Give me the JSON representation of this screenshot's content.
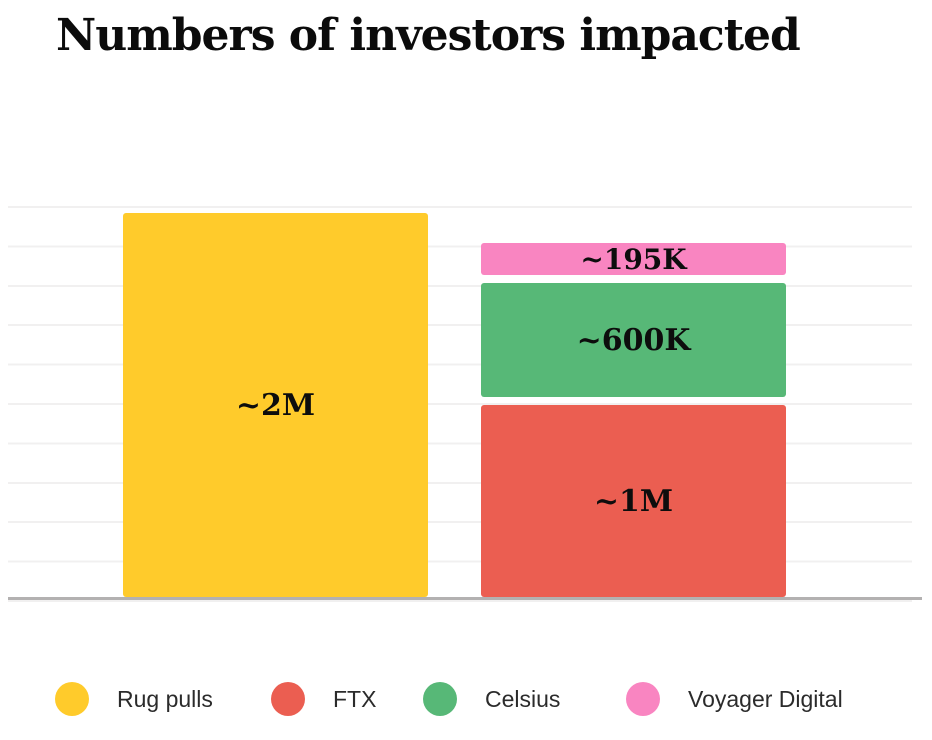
{
  "title": "Numbers of investors impacted",
  "colors": {
    "background": "#FFFFFF",
    "gridline": "#F1F0F0",
    "axis_line": "#B3B1B1",
    "label_text": "#0D0D0D",
    "legend_text": "#2B2B2B"
  },
  "chart_data": {
    "type": "bar",
    "subtype": "stacked",
    "title": "Numbers of investors impacted",
    "grid": true,
    "legend_position": "bottom",
    "value_axis_visible": false,
    "category_axis_visible": false,
    "bars": [
      {
        "segments": [
          {
            "series": "Rug pulls",
            "label": "~2M",
            "value": 2000000,
            "color": "#FFCB2B"
          }
        ]
      },
      {
        "segments": [
          {
            "series": "Voyager Digital",
            "label": "~195K",
            "value": 195000,
            "color": "#F985C1"
          },
          {
            "series": "Celsius",
            "label": "~600K",
            "value": 600000,
            "color": "#57B877"
          },
          {
            "series": "FTX",
            "label": "~1M",
            "value": 1000000,
            "color": "#EB5E51"
          }
        ]
      }
    ]
  },
  "legend": {
    "items": [
      {
        "label": "Rug pulls",
        "color": "#FFCB2B"
      },
      {
        "label": "FTX",
        "color": "#EB5E51"
      },
      {
        "label": "Celsius",
        "color": "#57B877"
      },
      {
        "label": "Voyager Digital",
        "color": "#F985C1"
      }
    ]
  }
}
